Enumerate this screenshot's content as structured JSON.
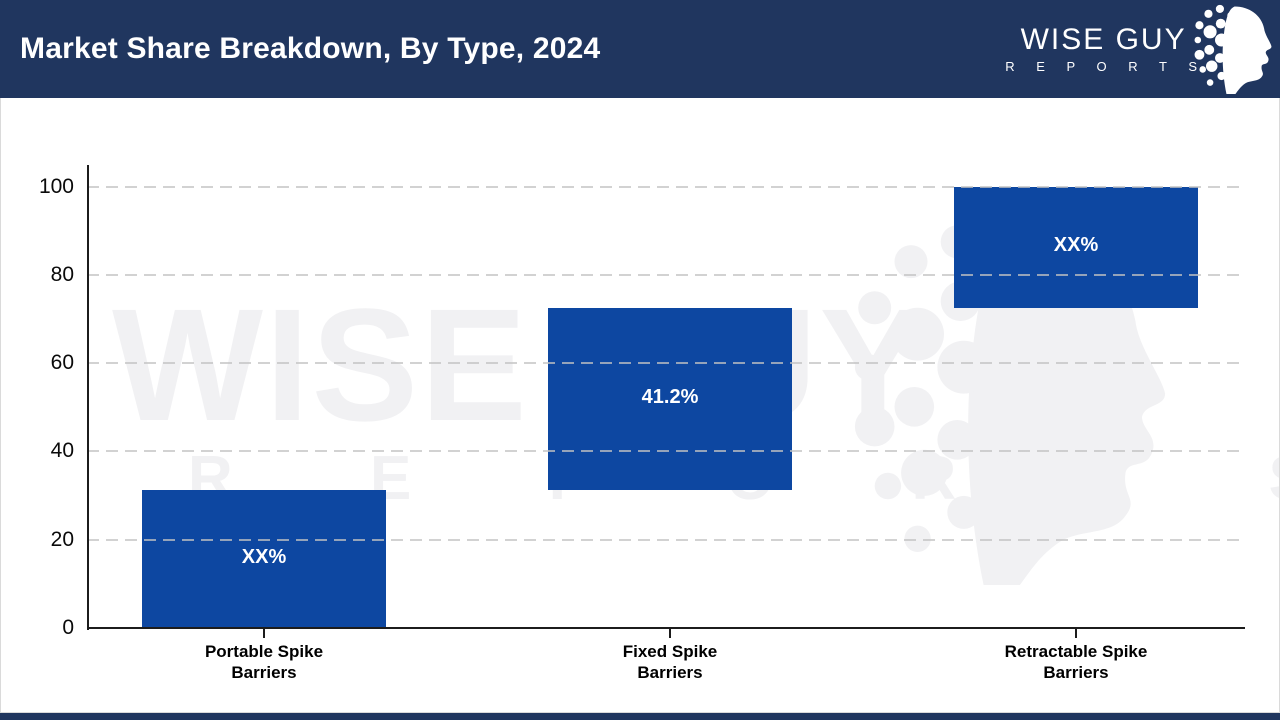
{
  "header": {
    "title": "Market Share Breakdown, By Type, 2024",
    "bg_color": "#20365f",
    "logo": {
      "line1": "WISE GUY",
      "line2": "R E P O R T S"
    }
  },
  "watermark": {
    "line1": "WISE GUY",
    "line2": "R E P O R T S"
  },
  "chart_data": {
    "type": "bar",
    "subtype": "floating-stacked-segments",
    "title": "Market Share Breakdown, By Type, 2024",
    "categories": [
      "Portable Spike Barriers",
      "Fixed Spike Barriers",
      "Retractable Spike Barriers"
    ],
    "category_lines": [
      [
        "Portable Spike",
        "Barriers"
      ],
      [
        "Fixed Spike",
        "Barriers"
      ],
      [
        "Retractable Spike",
        "Barriers"
      ]
    ],
    "segments": [
      {
        "category": "Portable Spike Barriers",
        "label": "XX%",
        "start": 0,
        "end": 31.2
      },
      {
        "category": "Fixed Spike Barriers",
        "label": "41.2%",
        "start": 31.2,
        "end": 72.4
      },
      {
        "category": "Retractable Spike Barriers",
        "label": "XX%",
        "start": 72.4,
        "end": 100
      }
    ],
    "ylim": [
      0,
      100
    ],
    "yticks": [
      0,
      20,
      40,
      60,
      80,
      100
    ],
    "grid": "horizontal-dashed",
    "bar_color": "#0d47a1",
    "label_color": "#ffffff",
    "axis_color": "#1c1c1c",
    "gridline_color": "#c3c3c3"
  },
  "footer": {
    "bg_color": "#20365f"
  }
}
